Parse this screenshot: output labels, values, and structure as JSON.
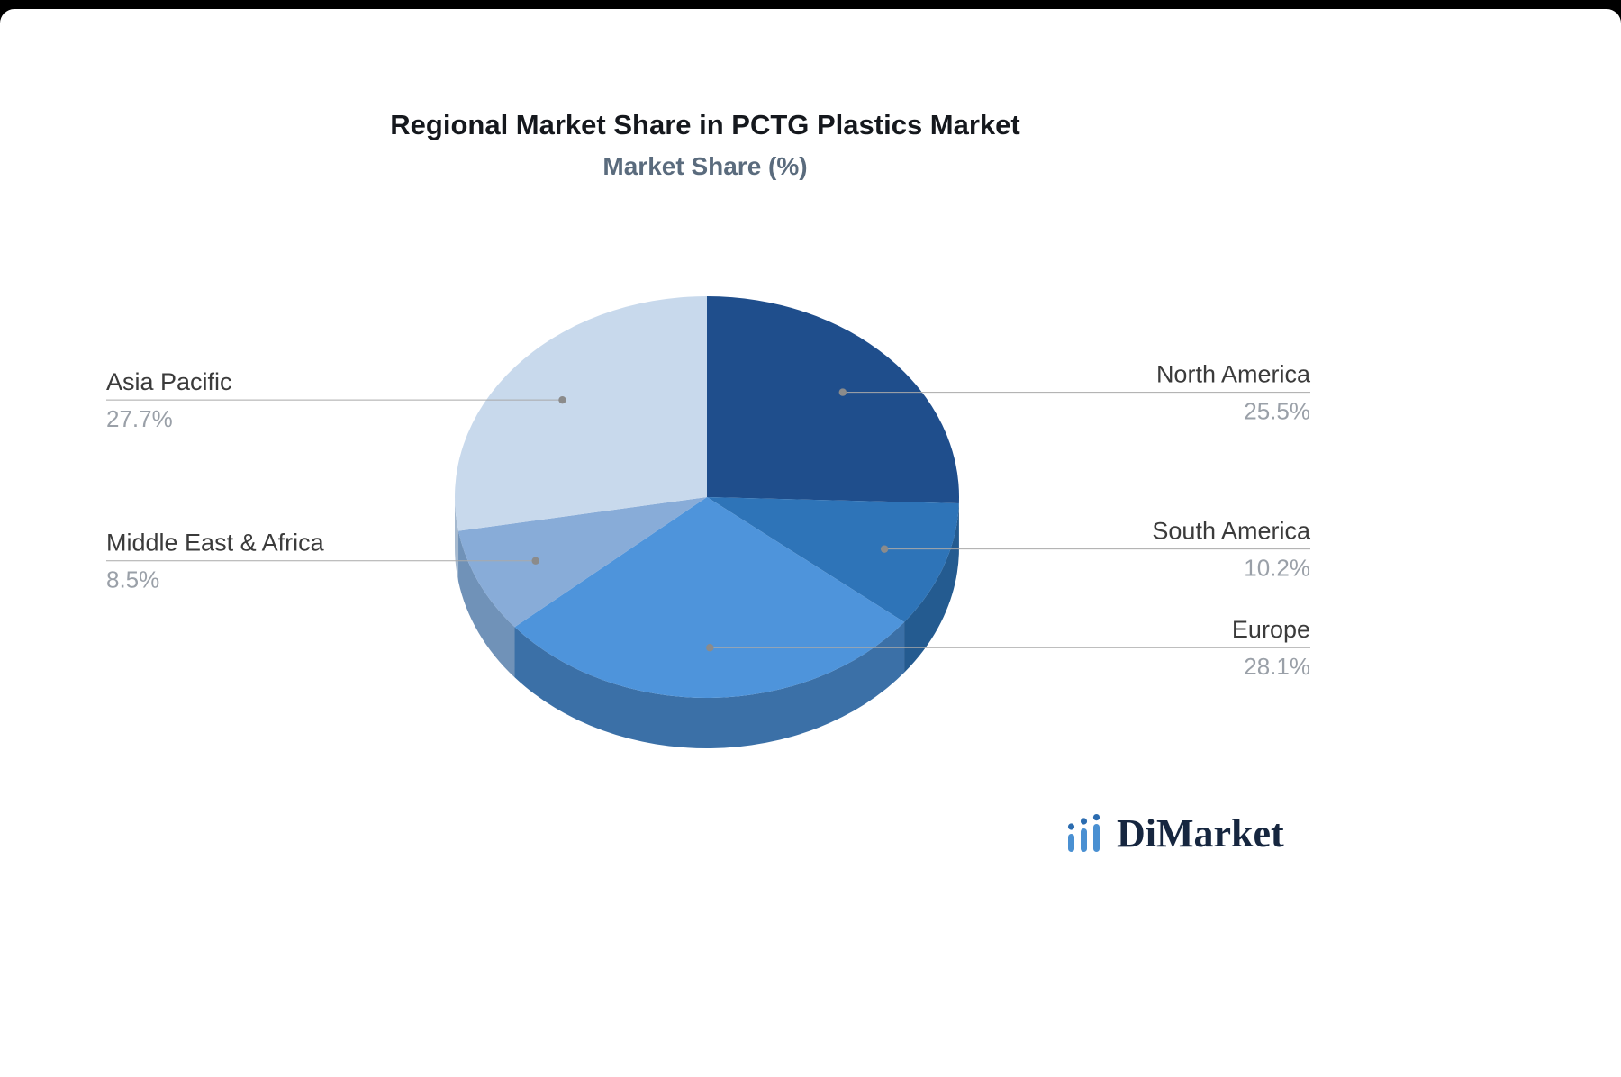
{
  "chart_data": {
    "type": "pie",
    "title": "Regional Market Share in PCTG Plastics Market",
    "subtitle": "Market Share (%)",
    "unit": "%",
    "direction": "clockwise",
    "start_angle_deg": 0,
    "legend_position": "none",
    "effect": "3d",
    "slices": [
      {
        "label": "North America",
        "value": 25.5,
        "display": "25.5%",
        "color": "#1F4E8C",
        "side_color": "#173C6D",
        "label_side": "right"
      },
      {
        "label": "South America",
        "value": 10.2,
        "display": "10.2%",
        "color": "#2E74B8",
        "side_color": "#245B90",
        "label_side": "right"
      },
      {
        "label": "Europe",
        "value": 28.1,
        "display": "28.1%",
        "color": "#4E94DB",
        "side_color": "#3B70A7",
        "label_side": "right"
      },
      {
        "label": "Middle East & Africa",
        "value": 8.5,
        "display": "8.5%",
        "color": "#88ACD8",
        "side_color": "#7092B8",
        "label_side": "left"
      },
      {
        "label": "Asia Pacific",
        "value": 27.7,
        "display": "27.7%",
        "color": "#C8D9EC",
        "side_color": "#A5B9CF",
        "label_side": "left"
      }
    ],
    "label_text_color": "#3b3b3b",
    "value_text_color": "#9aa0a8",
    "leader_line_color": "#a9a9a9",
    "leader_dot_color": "#8b8b8b"
  },
  "branding": {
    "logo_text": "DiMarket",
    "logo_icon": "bar-chart-icon"
  }
}
